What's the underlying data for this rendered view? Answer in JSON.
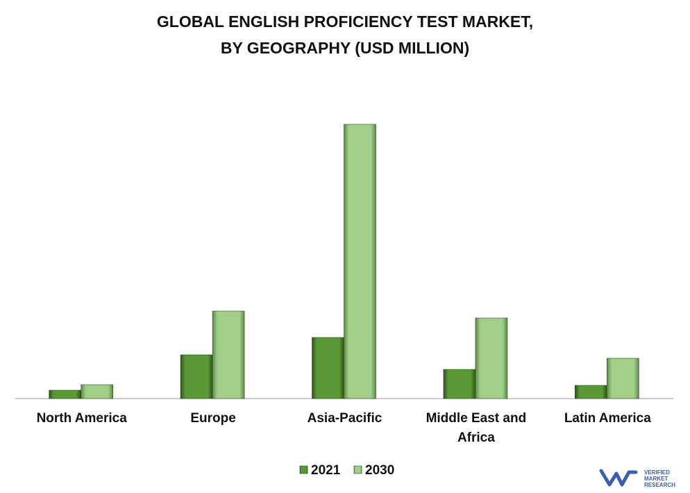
{
  "chart_data": {
    "type": "bar",
    "title": [
      "GLOBAL ENGLISH PROFICIENCY TEST MARKET,",
      "BY GEOGRAPHY (USD MILLION)"
    ],
    "categories": [
      "North America",
      "Europe",
      "Asia-Pacific",
      "Middle East and Africa",
      "Latin America"
    ],
    "series": [
      {
        "name": "2021",
        "color": "#5a9a36",
        "values": [
          12,
          63,
          88,
          42,
          19
        ]
      },
      {
        "name": "2030",
        "color": "#9fcf88",
        "values": [
          20,
          126,
          395,
          116,
          58
        ]
      }
    ],
    "ylim": [
      0,
      400
    ],
    "legend": "bottom"
  },
  "logo": {
    "line1": "VERIFIED",
    "line2": "MARKET",
    "line3": "RESEARCH"
  }
}
